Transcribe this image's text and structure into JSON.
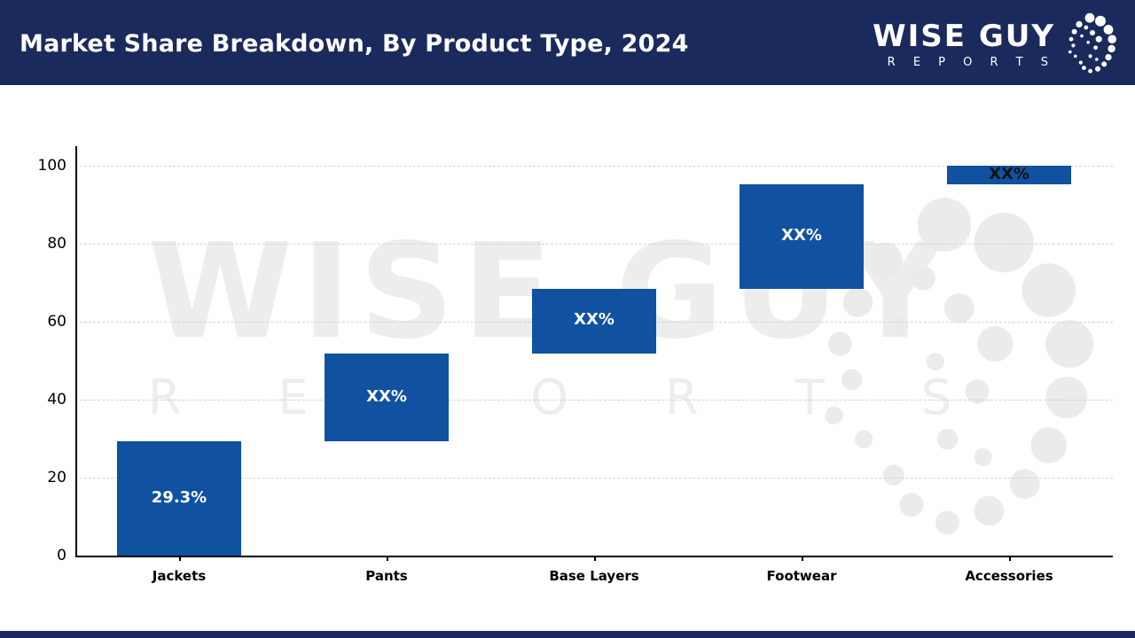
{
  "header": {
    "title": "Market Share Breakdown, By Product Type, 2024",
    "logo": {
      "line1": "WISE GUY",
      "line2": "R E P O R T S"
    }
  },
  "watermark": {
    "line1": "WISE GUY",
    "line2": "R E P O R T S"
  },
  "colors": {
    "header_bg": "#1b2a5c",
    "bar": "#1051a0",
    "grid": "#d2d2d2",
    "watermark": "#ededed"
  },
  "chart_data": {
    "type": "bar",
    "subtype": "waterfall",
    "title": "Market Share Breakdown, By Product Type, 2024",
    "categories": [
      "Jackets",
      "Pants",
      "Base Layers",
      "Footwear",
      "Accessories"
    ],
    "bars": [
      {
        "category": "Jackets",
        "start": 0,
        "end": 29.3,
        "label": "29.3%",
        "label_color": "#ffffff"
      },
      {
        "category": "Pants",
        "start": 29.3,
        "end": 51.8,
        "label": "XX%",
        "label_color": "#ffffff"
      },
      {
        "category": "Base Layers",
        "start": 51.8,
        "end": 68.5,
        "label": "XX%",
        "label_color": "#ffffff"
      },
      {
        "category": "Footwear",
        "start": 68.5,
        "end": 95.2,
        "label": "XX%",
        "label_color": "#ffffff"
      },
      {
        "category": "Accessories",
        "start": 95.2,
        "end": 100,
        "label": "XX%",
        "label_color": "#111111"
      }
    ],
    "ylim": [
      0,
      100
    ],
    "yticks": [
      0,
      20,
      40,
      60,
      80,
      100
    ],
    "xlabel": "",
    "ylabel": "",
    "grid": "dashed-horizontal",
    "legend": "none"
  }
}
